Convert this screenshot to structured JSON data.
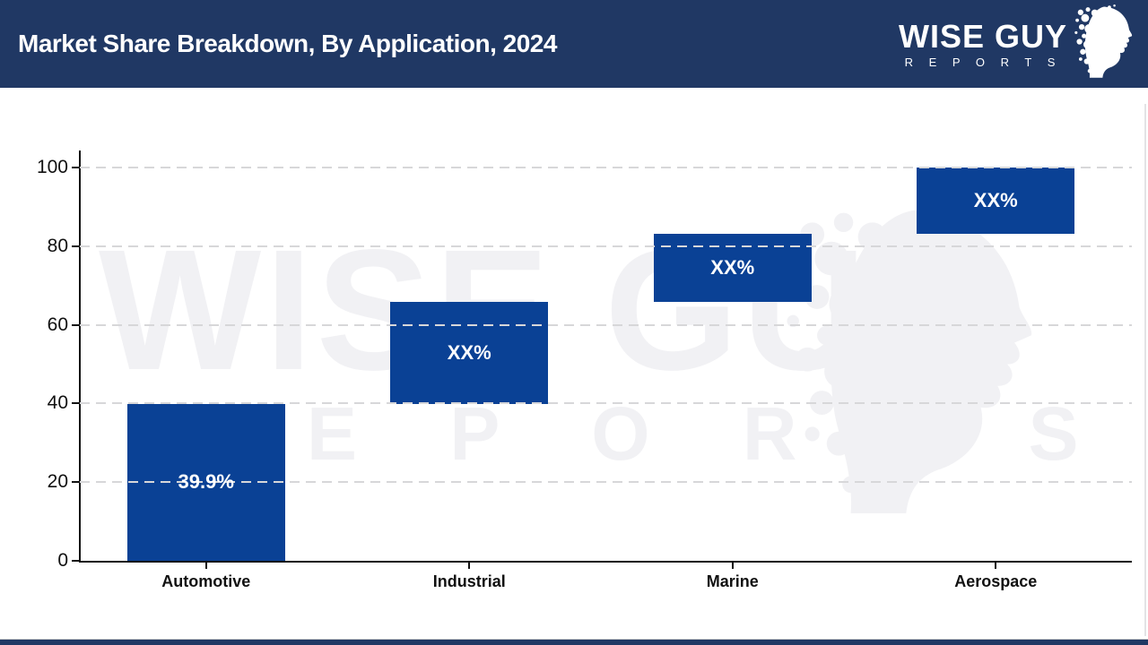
{
  "header": {
    "title": "Market Share Breakdown, By Application, 2024",
    "logo": {
      "line1": "WISE GUY",
      "line2": "R E P O R T S"
    }
  },
  "watermark": {
    "line1": "WISE GUY",
    "line2": "R E P O R T S"
  },
  "chart_data": {
    "type": "bar",
    "subtype": "waterfall",
    "title": "Market Share Breakdown, By Application, 2024",
    "categories": [
      "Automotive",
      "Industrial",
      "Marine",
      "Aerospace"
    ],
    "series": [
      {
        "name": "Market Share",
        "segments": [
          {
            "category": "Automotive",
            "start": 0,
            "end": 39.9,
            "label": "39.9%"
          },
          {
            "category": "Industrial",
            "start": 39.9,
            "end": 65.8,
            "label": "XX%"
          },
          {
            "category": "Marine",
            "start": 65.8,
            "end": 83.1,
            "label": "XX%"
          },
          {
            "category": "Aerospace",
            "start": 83.1,
            "end": 100,
            "label": "XX%"
          }
        ]
      }
    ],
    "xlabel": "",
    "ylabel": "",
    "ylim": [
      0,
      100
    ],
    "yticks": [
      0,
      20,
      40,
      60,
      80,
      100
    ],
    "grid": "horizontal-dashed",
    "legend": "none",
    "bar_color": "#0a4195",
    "label_color": "#ffffff"
  },
  "colors": {
    "header_bg": "#203864",
    "bar": "#0a4195",
    "grid": "#d7d7d9",
    "axis": "#111111",
    "watermark": "#f1f1f4"
  }
}
